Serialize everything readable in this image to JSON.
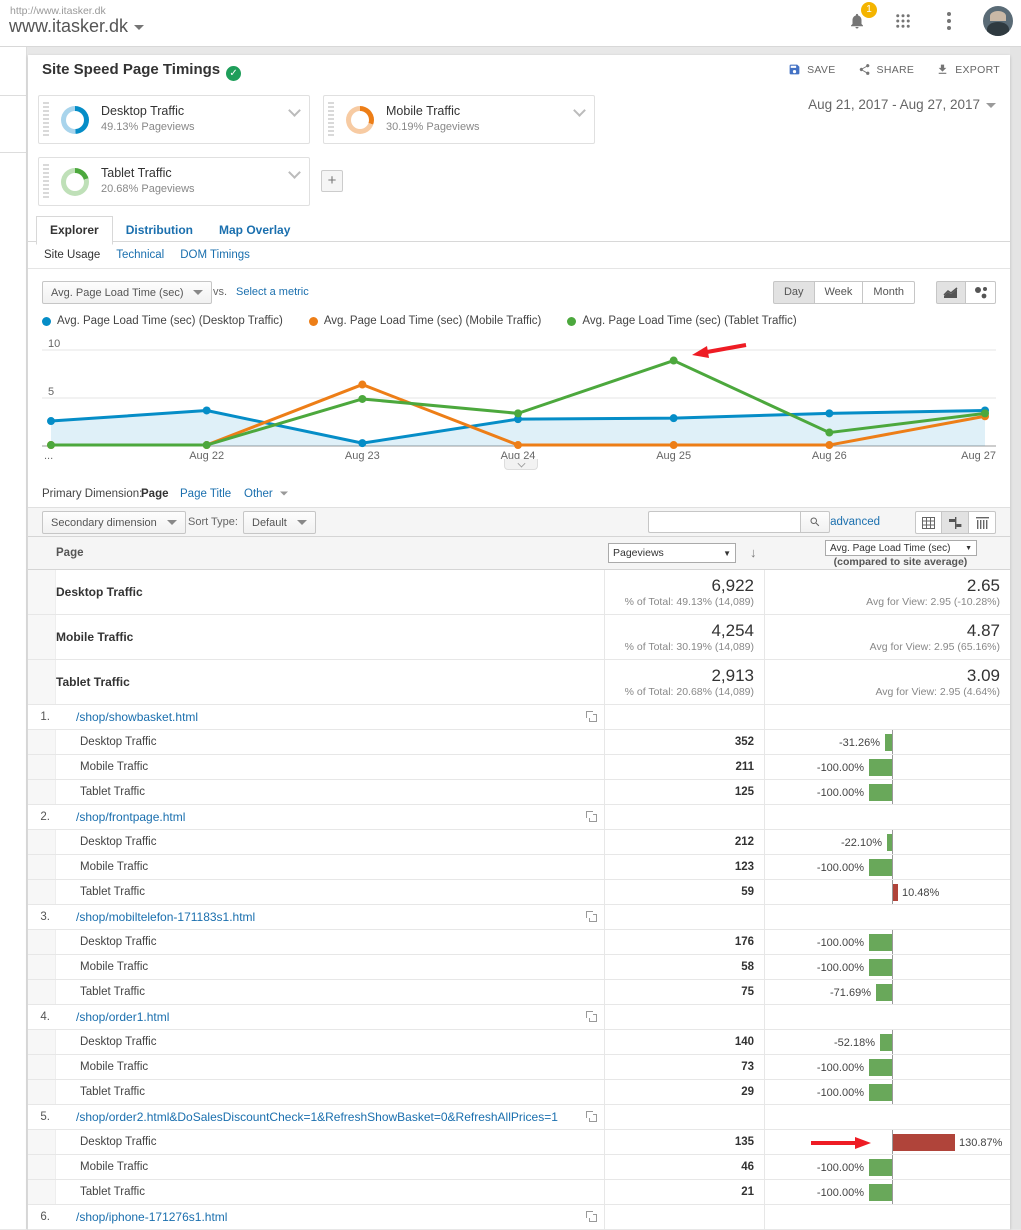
{
  "browser_header": {
    "url_small": "http://www.itasker.dk",
    "account_label": "www.itasker.dk",
    "notification_count": "1"
  },
  "report": {
    "title": "Site Speed Page Timings",
    "actions": {
      "save": "SAVE",
      "share": "SHARE",
      "export": "EXPORT"
    },
    "date_range": "Aug 21, 2017 - Aug 27, 2017"
  },
  "segments": [
    {
      "name": "Desktop Traffic",
      "sub": "49.13% Pageviews",
      "pct": 49.13,
      "color": "#058dc7",
      "color_light": "#a8d4ec"
    },
    {
      "name": "Mobile Traffic",
      "sub": "30.19% Pageviews",
      "pct": 30.19,
      "color": "#ed7e17",
      "color_light": "#f7cba3"
    },
    {
      "name": "Tablet Traffic",
      "sub": "20.68% Pageviews",
      "pct": 20.68,
      "color": "#4ca83d",
      "color_light": "#bfe0b8"
    }
  ],
  "add_segment_label": "+",
  "tabs": [
    {
      "label": "Explorer",
      "active": true
    },
    {
      "label": "Distribution",
      "active": false
    },
    {
      "label": "Map Overlay",
      "active": false
    }
  ],
  "subtabs": [
    {
      "label": "Site Usage",
      "active": true
    },
    {
      "label": "Technical",
      "active": false
    },
    {
      "label": "DOM Timings",
      "active": false
    }
  ],
  "metric_bar": {
    "metric_dropdown": "Avg. Page Load Time (sec)",
    "vs_label": "vs.",
    "select_metric_link": "Select a metric",
    "granularity": [
      {
        "label": "Day",
        "active": true
      },
      {
        "label": "Week",
        "active": false
      },
      {
        "label": "Month",
        "active": false
      }
    ]
  },
  "chart_data": {
    "type": "line",
    "x": [
      "...",
      "Aug 22",
      "Aug 23",
      "Aug 24",
      "Aug 25",
      "Aug 26",
      "Aug 27"
    ],
    "ylim": [
      0,
      10
    ],
    "yticks": [
      5,
      10
    ],
    "grid": true,
    "legend_position": "top",
    "series": [
      {
        "name": "Avg. Page Load Time (sec) (Desktop Traffic)",
        "color": "#058dc7",
        "area": true,
        "values": [
          2.6,
          3.7,
          0.3,
          2.8,
          2.9,
          3.4,
          3.7
        ]
      },
      {
        "name": "Avg. Page Load Time (sec) (Mobile Traffic)",
        "color": "#ed7e17",
        "area": false,
        "values": [
          0.1,
          0.1,
          6.4,
          0.1,
          0.1,
          0.1,
          3.1
        ]
      },
      {
        "name": "Avg. Page Load Time (sec) (Tablet Traffic)",
        "color": "#4ca83d",
        "area": false,
        "values": [
          0.1,
          0.1,
          4.9,
          3.4,
          8.9,
          1.4,
          3.4
        ]
      }
    ],
    "annotations": [
      {
        "type": "red-arrow",
        "target": "tablet-peak-aug-25",
        "direction": "left"
      }
    ]
  },
  "primary_dimension": {
    "label": "Primary Dimension:",
    "options": [
      {
        "label": "Page",
        "active": true
      },
      {
        "label": "Page Title",
        "active": false
      },
      {
        "label": "Other",
        "active": false,
        "has_caret": true
      }
    ]
  },
  "dim_toolbar": {
    "secondary_dimension": "Secondary dimension",
    "sort_type_label": "Sort Type:",
    "sort_type_value": "Default",
    "search_placeholder": "",
    "advanced_link": "advanced"
  },
  "table": {
    "columns": {
      "page": "Page",
      "pageviews": "Pageviews",
      "avg": "Avg. Page Load Time (sec)",
      "avg_sub": "(compared to site average)"
    },
    "bar_colors": {
      "positive": "#b0443a",
      "negative": "#69a85a"
    },
    "summary_rows": [
      {
        "label": "Desktop Traffic",
        "pageviews": "6,922",
        "pageviews_sub": "% of Total: 49.13% (14,089)",
        "avg": "2.65",
        "avg_sub": "Avg for View: 2.95 (-10.28%)"
      },
      {
        "label": "Mobile Traffic",
        "pageviews": "4,254",
        "pageviews_sub": "% of Total: 30.19% (14,089)",
        "avg": "4.87",
        "avg_sub": "Avg for View: 2.95 (65.16%)"
      },
      {
        "label": "Tablet Traffic",
        "pageviews": "2,913",
        "pageviews_sub": "% of Total: 20.68% (14,089)",
        "avg": "3.09",
        "avg_sub": "Avg for View: 2.95 (4.64%)"
      }
    ],
    "groups": [
      {
        "num": "1.",
        "url": "/shop/showbasket.html",
        "rows": [
          {
            "label": "Desktop Traffic",
            "pageviews": "352",
            "pct": -31.26,
            "pct_label": "-31.26%"
          },
          {
            "label": "Mobile Traffic",
            "pageviews": "211",
            "pct": -100,
            "pct_label": "-100.00%"
          },
          {
            "label": "Tablet Traffic",
            "pageviews": "125",
            "pct": -100,
            "pct_label": "-100.00%"
          }
        ]
      },
      {
        "num": "2.",
        "url": "/shop/frontpage.html",
        "rows": [
          {
            "label": "Desktop Traffic",
            "pageviews": "212",
            "pct": -22.1,
            "pct_label": "-22.10%"
          },
          {
            "label": "Mobile Traffic",
            "pageviews": "123",
            "pct": -100,
            "pct_label": "-100.00%"
          },
          {
            "label": "Tablet Traffic",
            "pageviews": "59",
            "pct": 10.48,
            "pct_label": "10.48%"
          }
        ]
      },
      {
        "num": "3.",
        "url": "/shop/mobiltelefon-171183s1.html",
        "rows": [
          {
            "label": "Desktop Traffic",
            "pageviews": "176",
            "pct": -100,
            "pct_label": "-100.00%"
          },
          {
            "label": "Mobile Traffic",
            "pageviews": "58",
            "pct": -100,
            "pct_label": "-100.00%"
          },
          {
            "label": "Tablet Traffic",
            "pageviews": "75",
            "pct": -71.69,
            "pct_label": "-71.69%"
          }
        ]
      },
      {
        "num": "4.",
        "url": "/shop/order1.html",
        "rows": [
          {
            "label": "Desktop Traffic",
            "pageviews": "140",
            "pct": -52.18,
            "pct_label": "-52.18%"
          },
          {
            "label": "Mobile Traffic",
            "pageviews": "73",
            "pct": -100,
            "pct_label": "-100.00%"
          },
          {
            "label": "Tablet Traffic",
            "pageviews": "29",
            "pct": -100,
            "pct_label": "-100.00%"
          }
        ]
      },
      {
        "num": "5.",
        "url": "/shop/order2.html&DoSalesDiscountCheck=1&RefreshShowBasket=0&RefreshAllPrices=1",
        "rows": [
          {
            "label": "Desktop Traffic",
            "pageviews": "135",
            "pct": 130.87,
            "pct_label": "130.87%",
            "red_arrow": true
          },
          {
            "label": "Mobile Traffic",
            "pageviews": "46",
            "pct": -100,
            "pct_label": "-100.00%"
          },
          {
            "label": "Tablet Traffic",
            "pageviews": "21",
            "pct": -100,
            "pct_label": "-100.00%"
          }
        ]
      },
      {
        "num": "6.",
        "url": "/shop/iphone-171276s1.html",
        "rows": []
      }
    ]
  }
}
